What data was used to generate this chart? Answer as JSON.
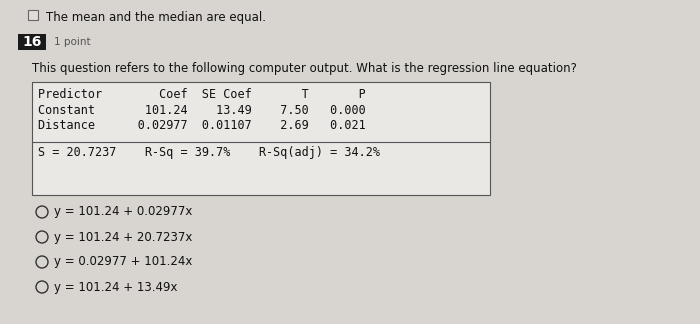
{
  "bg_color": "#d8d4d0",
  "top_checkbox_text": "The mean and the median are equal.",
  "question_number": "16",
  "question_points": "1 point",
  "question_text": "This question refers to the following computer output. What is the regression line equation?",
  "table_header": "Predictor        Coef  SE Coef       T       P",
  "table_row1": "Constant       101.24    13.49    7.50   0.000",
  "table_row2": "Distance      0.02977  0.01107    2.69   0.021",
  "table_footer": "S = 20.7237    R-Sq = 39.7%    R-Sq(adj) = 34.2%",
  "choices": [
    "y = 101.24 + 0.02977x",
    "y = 101.24 + 20.7237x",
    "y = 0.02977 + 101.24x",
    "y = 101.24 + 13.49x"
  ],
  "font_size_top": 8.5,
  "font_size_q_num": 10,
  "font_size_q_text": 8.5,
  "font_size_table": 8.5,
  "font_size_choices": 8.5
}
